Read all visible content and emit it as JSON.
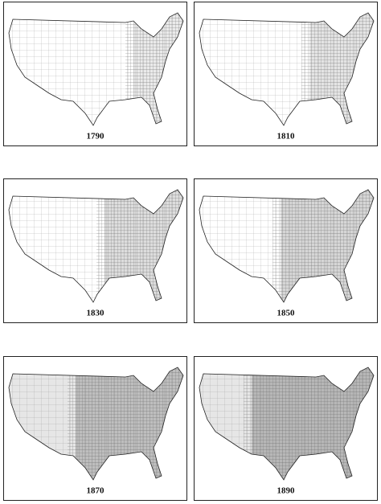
{
  "panels": [
    {
      "label": "1790"
    },
    {
      "label": "1810"
    },
    {
      "label": "1830"
    },
    {
      "label": "1850"
    },
    {
      "label": "1870"
    },
    {
      "label": "1890"
    }
  ]
}
